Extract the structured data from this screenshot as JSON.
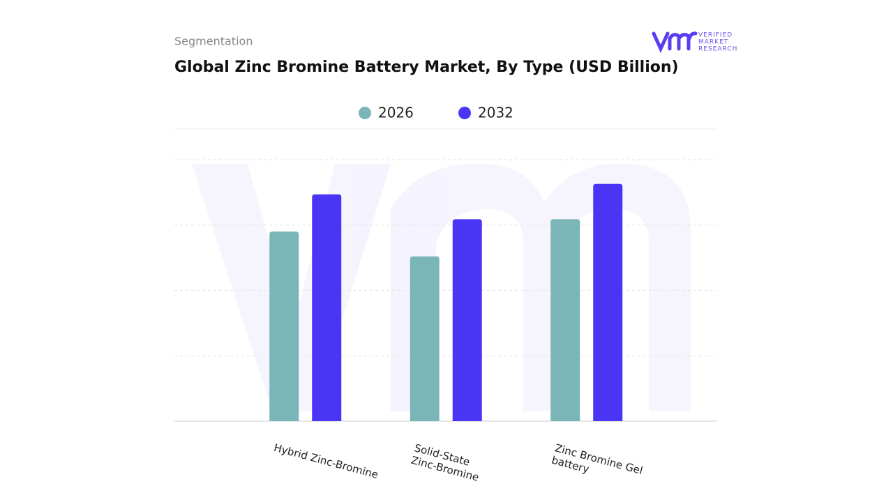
{
  "brand": {
    "line1": "VERIFIED",
    "line2": "MARKET",
    "line3": "RESEARCH"
  },
  "chart_data": {
    "type": "bar",
    "subtitle": "Segmentation",
    "title": "Global Zinc Bromine Battery Market, By Type (USD Billion)",
    "categories": [
      "Hybrid Zinc-Bromine",
      "Solid-State Zinc-Bromine",
      "Zinc Bromine Gel battery"
    ],
    "series": [
      {
        "name": "2026",
        "color": "#7ab5b8",
        "values": [
          2.9,
          2.52,
          3.09
        ]
      },
      {
        "name": "2032",
        "color": "#4b35f5",
        "values": [
          3.47,
          3.09,
          3.63
        ]
      }
    ],
    "ylim": [
      0,
      4.47
    ],
    "yticks": [
      1,
      2,
      3,
      4
    ],
    "grid": true
  }
}
